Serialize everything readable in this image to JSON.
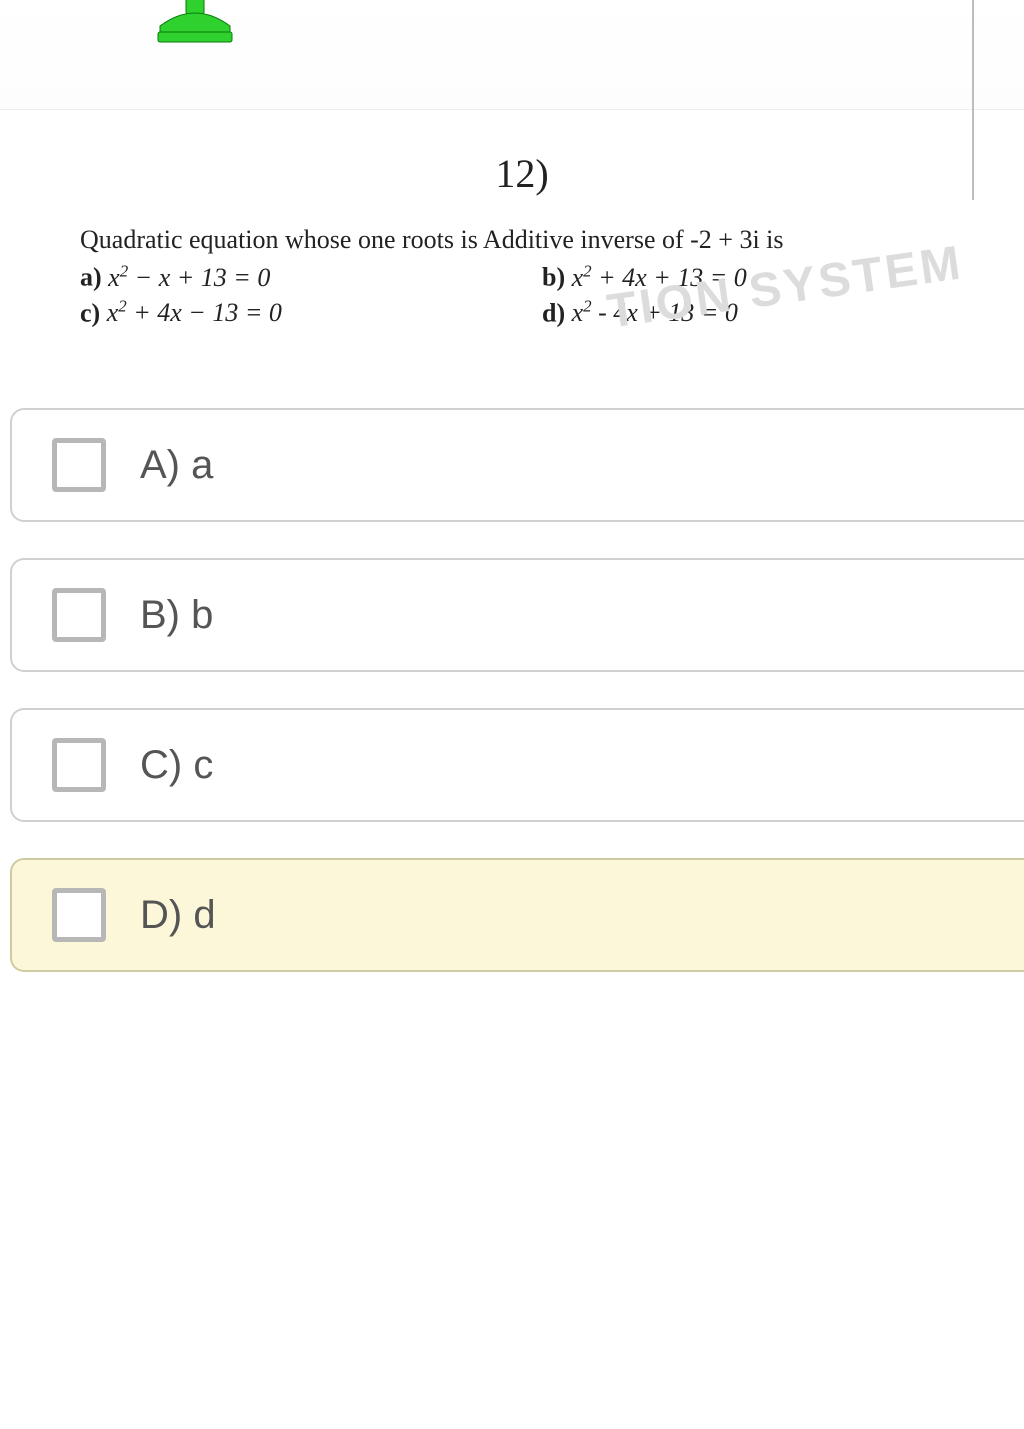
{
  "question": {
    "number_label": "12)",
    "stem": "Quadratic equation whose one roots is Additive inverse of -2 + 3i is",
    "inline_options": {
      "a": {
        "label": "a)",
        "eq_html": "<i>x</i><sup>2</sup> − <i>x</i> + 13 = 0"
      },
      "b": {
        "label": "b)",
        "eq_html": "<i>x</i><sup>2</sup> + 4x + 13 = 0"
      },
      "c": {
        "label": "c)",
        "eq_html": "<i>x</i><sup>2</sup> + 4x − 13 = 0"
      },
      "d": {
        "label": "d)",
        "eq_html": "<i>x</i><sup>2</sup> - 4x + 13 = 0"
      }
    },
    "watermark": "TION SYSTEM"
  },
  "answers": [
    {
      "key": "A",
      "label": "A) a",
      "highlighted": false
    },
    {
      "key": "B",
      "label": "B) b",
      "highlighted": false
    },
    {
      "key": "C",
      "label": "C) c",
      "highlighted": false
    },
    {
      "key": "D",
      "label": "D) d",
      "highlighted": true
    }
  ],
  "colors": {
    "highlight_bg": "#fdf7d9",
    "border": "#d0d0d0",
    "checkbox_border": "#b7b7b7",
    "watermark": "#dcdcdc",
    "pushpin": "#2fd12f"
  }
}
